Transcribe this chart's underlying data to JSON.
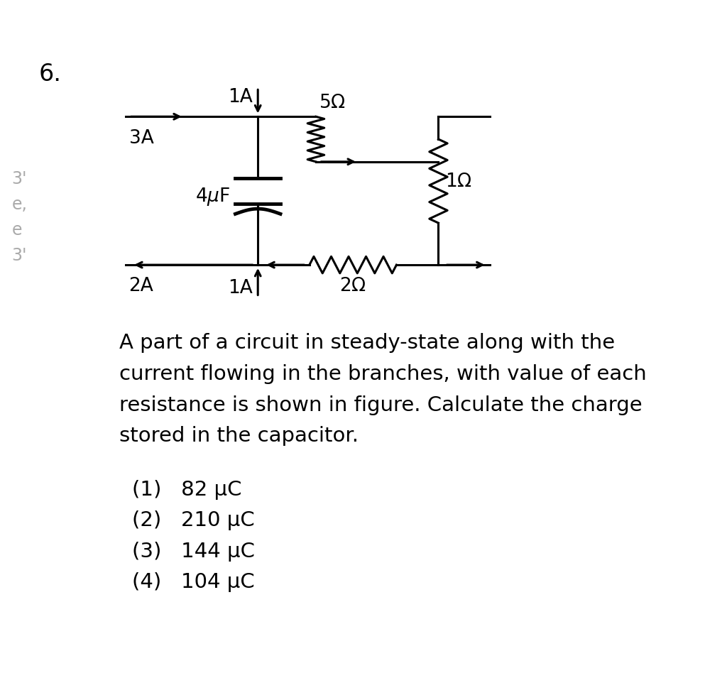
{
  "background_color": "#ffffff",
  "question_number": "6.",
  "description_lines": [
    "A part of a circuit in steady-state along with the",
    "current flowing in the branches, with value of each",
    "resistance is shown in figure. Calculate the charge",
    "stored in the capacitor."
  ],
  "options": [
    "(1)   82 μC",
    "(2)   210 μC",
    "(3)   144 μC",
    "(4)   104 μC"
  ],
  "margin_texts": [
    "3'",
    "e,",
    "e",
    "3'"
  ],
  "margin_text_color": "#aaaaaa"
}
